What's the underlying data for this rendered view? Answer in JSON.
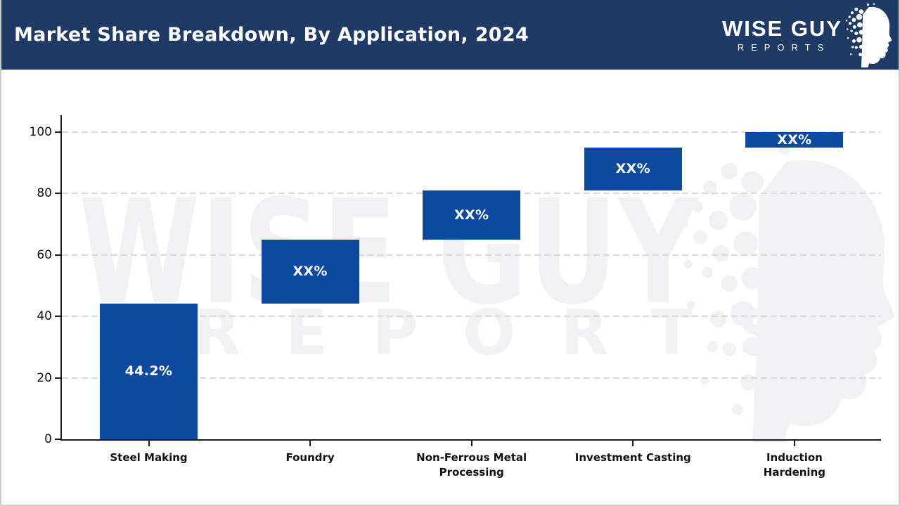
{
  "header": {
    "title": "Market Share Breakdown, By Application, 2024",
    "logo": {
      "line1": "WISE GUY",
      "line2": "REPORTS",
      "head_icon": "head-profile-dots-icon"
    },
    "bg_color": "#203a66"
  },
  "watermark": {
    "line1": "WISE GUY",
    "line2": "REPORTS",
    "head_icon": "head-profile-dots-icon"
  },
  "chart_data": {
    "type": "bar",
    "variant": "waterfall",
    "title": "Market Share Breakdown, By Application, 2024",
    "xlabel": "",
    "ylabel": "",
    "ylim": [
      0,
      100
    ],
    "yticks": [
      0,
      20,
      40,
      60,
      80,
      100
    ],
    "grid": "horizontal-dashed",
    "legend": "none",
    "bar_color": "#0c4a9e",
    "bar_label_color": "#ffffff",
    "categories": [
      "Steel Making",
      "Foundry",
      "Non-Ferrous Metal Processing",
      "Investment Casting",
      "Induction Hardening"
    ],
    "category_lines": [
      [
        "Steel Making"
      ],
      [
        "Foundry"
      ],
      [
        "Non-Ferrous Metal",
        "Processing"
      ],
      [
        "Investment Casting"
      ],
      [
        "Induction",
        "Hardening"
      ]
    ],
    "bars": [
      {
        "category": "Steel Making",
        "label": "44.2%",
        "start": 0,
        "end": 44.2
      },
      {
        "category": "Foundry",
        "label": "XX%",
        "start": 44.2,
        "end": 65
      },
      {
        "category": "Non-Ferrous Metal Processing",
        "label": "XX%",
        "start": 65,
        "end": 81
      },
      {
        "category": "Investment Casting",
        "label": "XX%",
        "start": 81,
        "end": 95
      },
      {
        "category": "Induction Hardening",
        "label": "XX%",
        "start": 95,
        "end": 100
      }
    ]
  }
}
